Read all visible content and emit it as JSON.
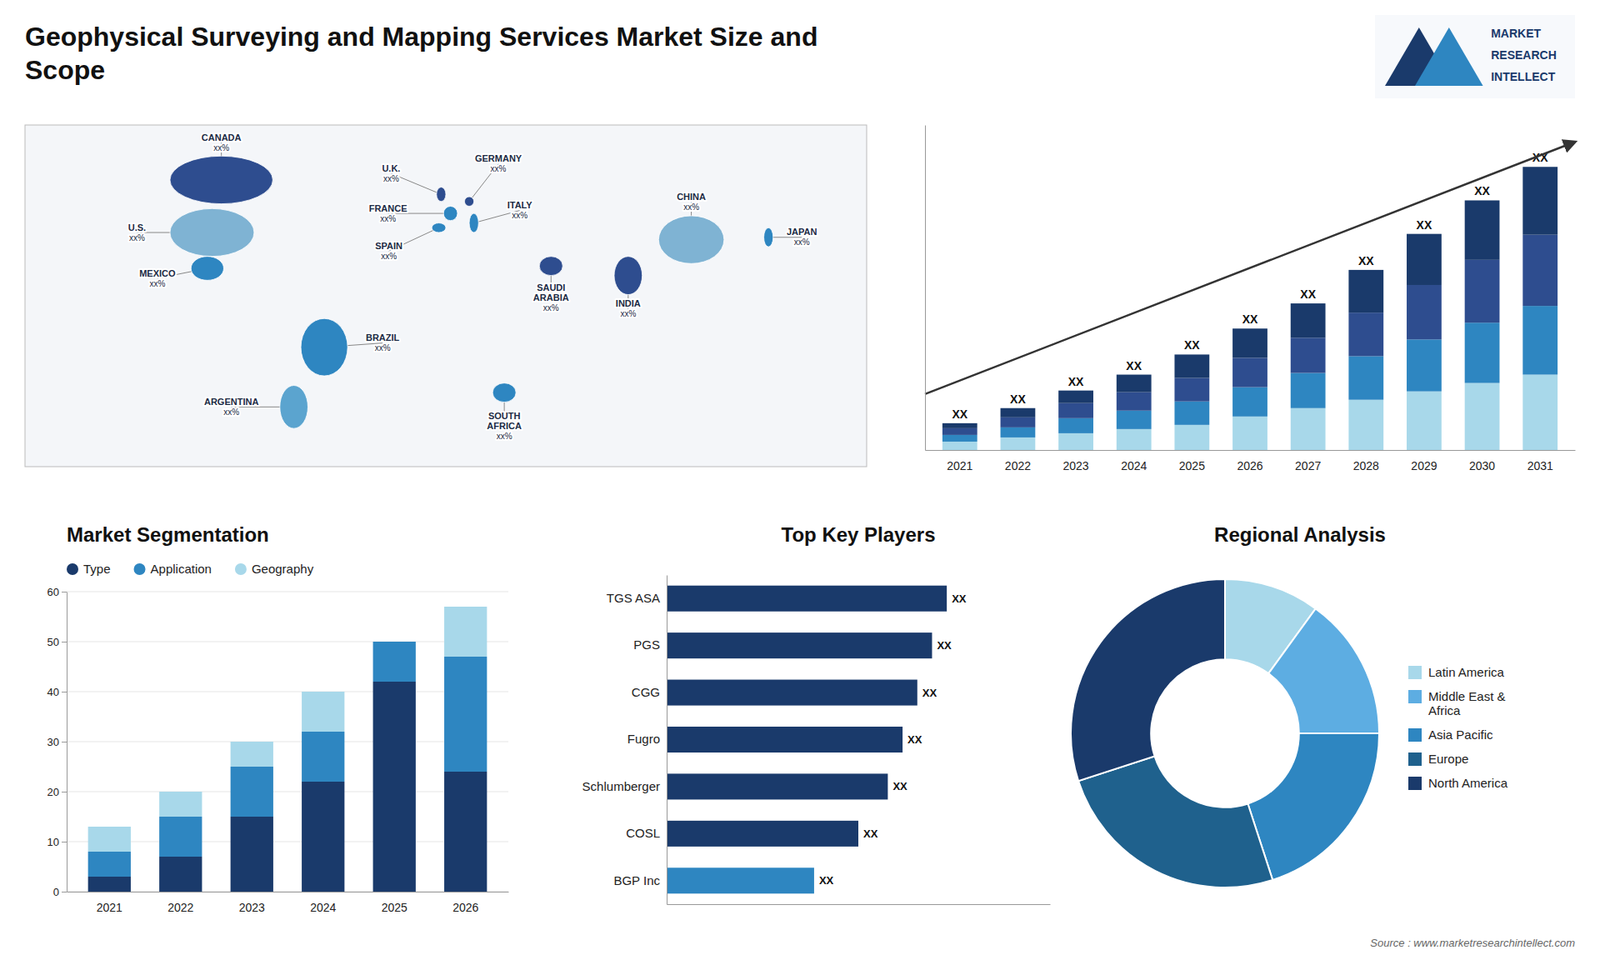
{
  "chart_data": [
    {
      "type": "map",
      "title": "Geophysical Surveying and Mapping Services Market Size and\nScope",
      "xlim": [
        -180,
        180
      ],
      "ylim": [
        -60,
        83
      ],
      "tick_labels": false,
      "labels": [
        "CANADA\nxx%",
        "U.S.\nxx%",
        "MEXICO\nxx%",
        "BRAZIL\nxx%",
        "ARGENTINA\nxx%",
        "U.K.\nxx%",
        "FRANCE\nxx%",
        "SPAIN\nxx%",
        "GERMANY\nxx%",
        "ITALY\nxx%",
        "SOUTH\nAFRICA\nxx%",
        "SAUDI\nARABIA\nxx%",
        "INDIA\nxx%",
        "CHINA\nxx%",
        "JAPAN\nxx%"
      ],
      "lon": [
        -96,
        -100,
        -102,
        -52,
        -65,
        -2,
        2,
        -3,
        10,
        12,
        25,
        45,
        78,
        105,
        138
      ],
      "lat": [
        60,
        38,
        23,
        -10,
        -35,
        54,
        46,
        40,
        51,
        42,
        -29,
        24,
        20,
        35,
        36
      ],
      "rx": [
        22,
        18,
        7,
        10,
        6,
        2,
        3,
        3,
        2,
        2,
        5,
        5,
        6,
        14,
        2
      ],
      "ry": [
        10,
        10,
        5,
        12,
        9,
        3,
        3,
        2,
        2,
        4,
        4,
        4,
        8,
        10,
        4
      ],
      "colors": [
        "#2e4d8f",
        "#7fb3d3",
        "#2e86c1",
        "#2e86c1",
        "#5ba4cf",
        "#2e4d8f",
        "#2e86c1",
        "#2e86c1",
        "#2e4d8f",
        "#2e86c1",
        "#2e86c1",
        "#2e4d8f",
        "#2e4d8f",
        "#7fb3d3",
        "#2e86c1"
      ],
      "annotations": [
        "MARKET",
        "RESEARCH",
        "INTELLECT"
      ],
      "source": "Source : www.marketresearchintellect.com"
    },
    {
      "type": "bar",
      "stacked": true,
      "categories": [
        "2021",
        "2022",
        "2023",
        "2024",
        "2025",
        "2026",
        "2027",
        "2028",
        "2029",
        "2030",
        "2031"
      ],
      "series": [
        {
          "color": "#a8d8ea",
          "values": [
            1,
            1.5,
            2,
            2.5,
            3,
            4,
            5,
            6,
            7,
            8,
            9
          ]
        },
        {
          "color": "#2e86c1",
          "values": [
            0.8,
            1.2,
            1.8,
            2.2,
            2.8,
            3.5,
            4.2,
            5.2,
            6.2,
            7.2,
            8.2
          ]
        },
        {
          "color": "#2e4d8f",
          "values": [
            0.8,
            1.2,
            1.8,
            2.2,
            2.8,
            3.5,
            4.2,
            5.2,
            6.5,
            7.5,
            8.5
          ]
        },
        {
          "color": "#1a3a6b",
          "values": [
            0.6,
            1.1,
            1.5,
            2.1,
            2.8,
            3.5,
            4.1,
            5.1,
            6.1,
            7.1,
            8.1
          ]
        }
      ],
      "ylim": [
        0,
        38.8
      ],
      "tick_labels": "x",
      "annotation": "XX"
    },
    {
      "type": "bar",
      "stacked": true,
      "title": "Market Segmentation",
      "categories": [
        "2021",
        "2022",
        "2023",
        "2024",
        "2025",
        "2026"
      ],
      "series": [
        {
          "name": "Type",
          "color": "#1a3a6b",
          "values": [
            3,
            7,
            15,
            22,
            42,
            24
          ]
        },
        {
          "name": "Application",
          "color": "#2e86c1",
          "values": [
            5,
            8,
            10,
            10,
            8,
            23
          ]
        },
        {
          "name": "Geography",
          "color": "#a8d8ea",
          "values": [
            5,
            5,
            5,
            8,
            0,
            10
          ]
        }
      ],
      "ylim": [
        0,
        60
      ],
      "yticks": [
        0,
        10,
        20,
        30,
        40,
        50,
        60
      ],
      "grid": true,
      "legend": "top"
    },
    {
      "type": "bar",
      "orientation": "horizontal",
      "title": "Top Key Players",
      "categories": [
        "TGS ASA",
        "PGS",
        "CGG",
        "Fugro",
        "Schlumberger",
        "COSL",
        "BGP Inc"
      ],
      "values": [
        9.5,
        9.0,
        8.5,
        8.0,
        7.5,
        6.5,
        5.0
      ],
      "colors": [
        "#1a3a6b",
        "#1a3a6b",
        "#1a3a6b",
        "#1a3a6b",
        "#1a3a6b",
        "#1a3a6b",
        "#2e86c1"
      ],
      "xlim": [
        0,
        13
      ],
      "tick_labels": "y",
      "annotation": "XX"
    },
    {
      "type": "pie",
      "title": "Regional Analysis",
      "categories": [
        "Latin America",
        "Middle East &\nAfrica",
        "Asia Pacific",
        "Europe",
        "North America"
      ],
      "values": [
        10,
        15,
        20,
        25,
        30
      ],
      "colors": [
        "#a8d8ea",
        "#5dade2",
        "#2e86c1",
        "#1f618d",
        "#1a3a6b"
      ],
      "legend": "right"
    }
  ]
}
